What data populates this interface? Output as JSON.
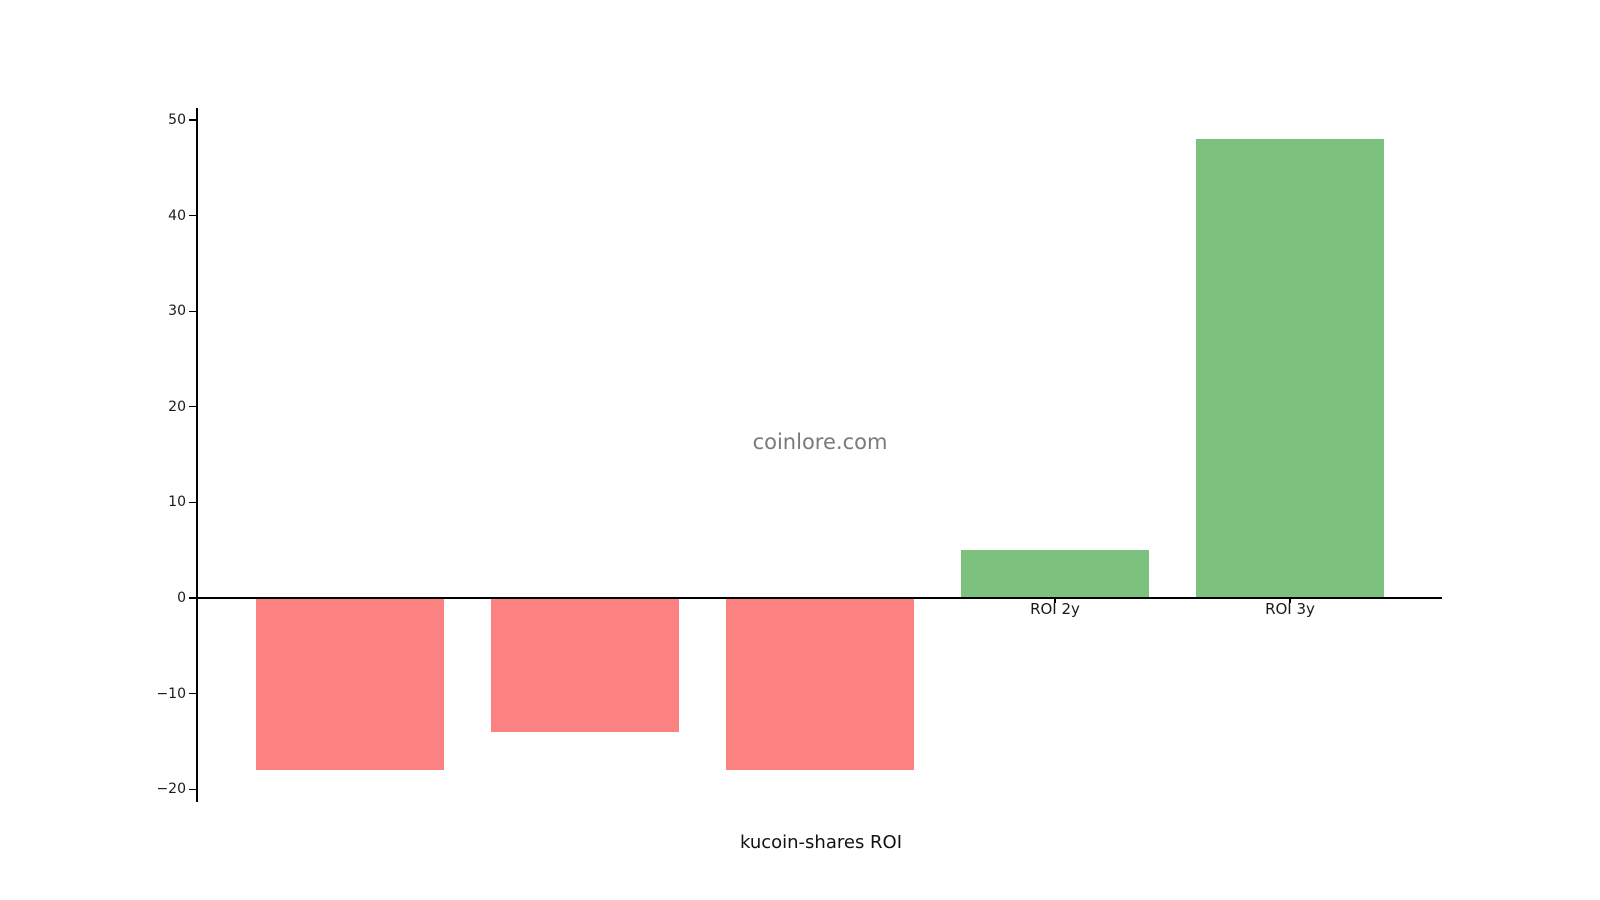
{
  "chart_data": {
    "type": "bar",
    "categories": [
      "",
      "",
      "",
      "ROI 2y",
      "ROI 3y"
    ],
    "values": [
      -18,
      -14,
      -18,
      5,
      48
    ],
    "title": "",
    "xlabel": "kucoin-shares ROI",
    "ylabel": "",
    "ylim": [
      -21.3,
      51.3
    ],
    "yticks": [
      50,
      40,
      30,
      20,
      10,
      0,
      -10,
      -20
    ],
    "ytick_labels": [
      "50",
      "40",
      "30",
      "20",
      "10",
      "0",
      "−10",
      "−20"
    ],
    "grid": false,
    "legend": "none",
    "positive_color": "#7dc17e",
    "negative_color": "#fc8181",
    "axis_color": "#000000",
    "watermark": "coinlore.com",
    "watermark_color": "#7a7a7a"
  }
}
